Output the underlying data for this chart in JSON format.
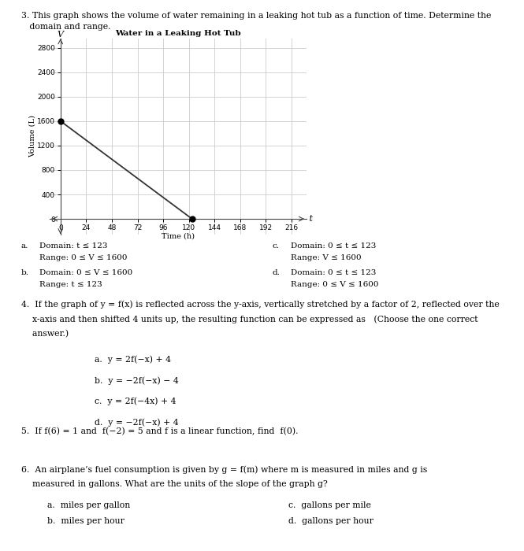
{
  "question3_line1": "3. This graph shows the volume of water remaining in a leaking hot tub as a function of time. Determine the",
  "question3_line2": "   domain and range.",
  "graph_title": "Water in a Leaking Hot Tub",
  "xlabel": "Time (h)",
  "ylabel": "Volume (L)",
  "x_axis_label_var": "t",
  "y_axis_label_var": "V",
  "line_x": [
    0,
    123
  ],
  "line_y": [
    1600,
    0
  ],
  "point1": [
    0,
    1600
  ],
  "point2": [
    123,
    0
  ],
  "x_ticks": [
    0,
    24,
    48,
    72,
    96,
    120,
    144,
    168,
    192,
    216
  ],
  "y_ticks": [
    0,
    400,
    800,
    1200,
    1600,
    2000,
    2400,
    2800
  ],
  "xlim": [
    -10,
    230
  ],
  "ylim": [
    -250,
    2950
  ],
  "ans3_a_label": "a.",
  "ans3_a_line1": "Domain: t ≤ 123",
  "ans3_a_line2": "Range: 0 ≤ V ≤ 1600",
  "ans3_b_label": "b.",
  "ans3_b_line1": "Domain: 0 ≤ V ≤ 1600",
  "ans3_b_line2": "Range: t ≤ 123",
  "ans3_c_label": "c.",
  "ans3_c_line1": "Domain: 0 ≤ t ≤ 123",
  "ans3_c_line2": "Range: V ≤ 1600",
  "ans3_d_label": "d.",
  "ans3_d_line1": "Domain: 0 ≤ t ≤ 123",
  "ans3_d_line2": "Range: 0 ≤ V ≤ 1600",
  "q4_line1": "4.  If the graph of y = f(x) is reflected across the y-axis, vertically stretched by a factor of 2, reflected over the",
  "q4_line2": "    x-axis and then shifted 4 units up, the resulting function can be expressed as   (Choose the one correct",
  "q4_line3": "    answer.)",
  "ans4_a": "a.  y = 2f(−x) + 4",
  "ans4_b": "b.  y = −2f(−x) − 4",
  "ans4_c": "c.  y = 2f(−4x) + 4",
  "ans4_d": "d.  y = −2f(−x) + 4",
  "q5": "5.  If f(6) = 1 and  f(−2) = 5 and f is a linear function, find  f(0).",
  "q6_line1": "6.  An airplane’s fuel consumption is given by g = f(m) where m is measured in miles and g is",
  "q6_line2": "    measured in gallons. What are the units of the slope of the graph g?",
  "ans6_a": "a.  miles per gallon",
  "ans6_b": "b.  miles per hour",
  "ans6_c": "c.  gallons per mile",
  "ans6_d": "d.  gallons per hour",
  "bg_color": "#ffffff",
  "text_color": "#000000",
  "grid_color": "#cccccc",
  "line_color": "#333333",
  "point_color": "#000000"
}
